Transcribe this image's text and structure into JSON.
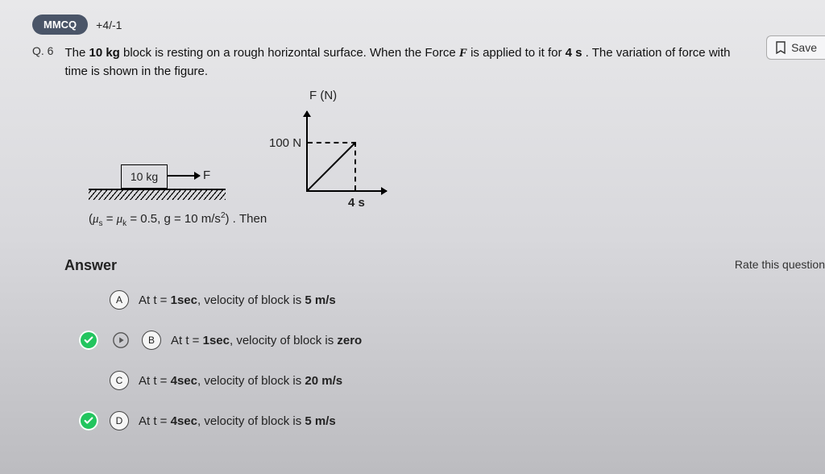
{
  "badge": {
    "label": "MMCQ",
    "scoring": "+4/-1",
    "bg": "#4a5568"
  },
  "save": {
    "label": "Save"
  },
  "question": {
    "number": "Q. 6",
    "mass": "10 kg",
    "text_a": "The ",
    "text_b": " block is resting on a rough horizontal surface. When the Force ",
    "force_var": "F",
    "text_c": " is applied to it for ",
    "duration": "4 s",
    "text_d": " . The variation of force with time is shown in the figure."
  },
  "figure": {
    "block_label": "10 kg",
    "force_label": "F",
    "graph_title": "F (N)",
    "y_tick": "100 N",
    "x_tick": "4 s"
  },
  "params": {
    "mu_s_var": "μ",
    "mu_s_sub": "s",
    "mu_k_var": "μ",
    "mu_k_sub": "k",
    "mu_value": "0.5",
    "g_value": "10 m/s",
    "g_exp": "2",
    "then": ". Then"
  },
  "rate": "Rate this question",
  "answer_heading": "Answer",
  "options": [
    {
      "letter": "A",
      "t": "1sec",
      "v": "5 m/s",
      "pre": "At t = ",
      "mid": ", velocity of block is ",
      "checked": false,
      "watch": false
    },
    {
      "letter": "B",
      "t": "1sec",
      "v": "zero",
      "pre": "At t = ",
      "mid": ", velocity of block is ",
      "checked": true,
      "watch": true
    },
    {
      "letter": "C",
      "t": "4sec",
      "v": "20 m/s",
      "pre": "At t = ",
      "mid": ", velocity of block is ",
      "checked": false,
      "watch": false
    },
    {
      "letter": "D",
      "t": "4sec",
      "v": "5 m/s",
      "pre": "At t = ",
      "mid": ", velocity of block is ",
      "checked": true,
      "watch": false
    }
  ],
  "colors": {
    "check": "#22c55e"
  }
}
